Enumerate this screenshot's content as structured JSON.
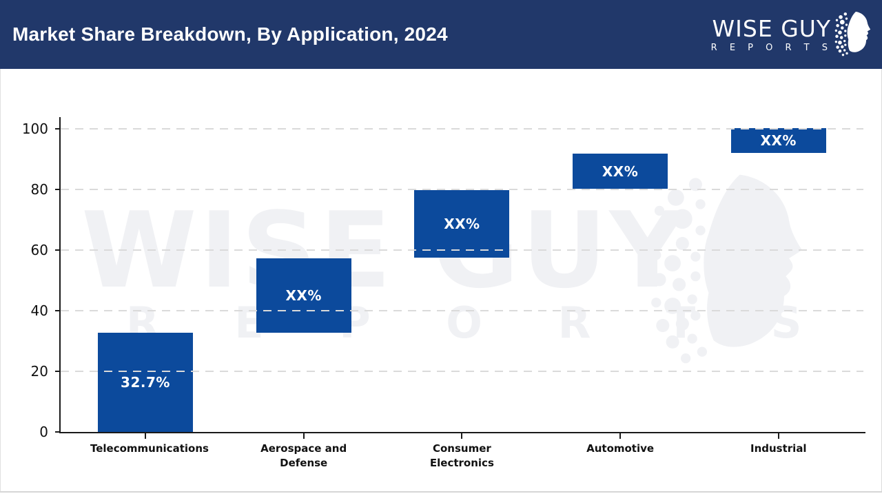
{
  "header": {
    "title": "Market Share Breakdown, By Application, 2024",
    "logo_line1": "WISE GUY",
    "logo_line2": "R E P O R T S"
  },
  "watermark": {
    "line1": "WISE GUY",
    "line2": "R E P O R T S"
  },
  "chart_data": {
    "type": "bar",
    "subtype": "waterfall",
    "title": "Market Share Breakdown, By Application, 2024",
    "categories": [
      "Telecommunications",
      "Aerospace and Defense",
      "Consumer Electronics",
      "Automotive",
      "Industrial"
    ],
    "bars": [
      {
        "category": "Telecommunications",
        "start": 0,
        "end": 32.7,
        "label": "32.7%"
      },
      {
        "category": "Aerospace and Defense",
        "start": 32.7,
        "end": 57.3,
        "label": "XX%"
      },
      {
        "category": "Consumer Electronics",
        "start": 57.5,
        "end": 79.8,
        "label": "XX%"
      },
      {
        "category": "Automotive",
        "start": 80.2,
        "end": 91.8,
        "label": "XX%"
      },
      {
        "category": "Industrial",
        "start": 92.0,
        "end": 100.2,
        "label": "XX%"
      }
    ],
    "xlabel": "",
    "ylabel": "",
    "y_ticks": [
      0,
      20,
      40,
      60,
      80,
      100
    ],
    "ylim": [
      0,
      103.9
    ],
    "grid": "dashed-horizontal",
    "legend": "none",
    "colors": {
      "bar": "#0C4A9C",
      "bar_label": "#FFFFFF",
      "grid": "#DADADA",
      "axis": "#1A1A1A",
      "header_bg": "#21386A",
      "watermark": "#F0F1F4"
    }
  }
}
